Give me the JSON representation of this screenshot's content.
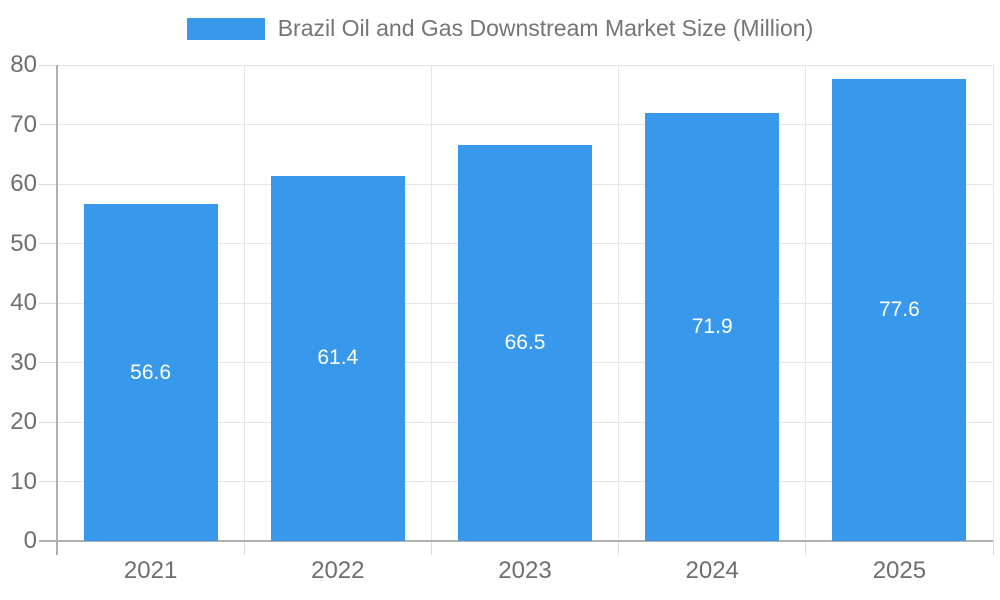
{
  "legend": {
    "label": "Brazil Oil and Gas Downstream Market Size (Million)",
    "swatch_color": "#3899EC"
  },
  "chart_data": {
    "type": "bar",
    "title": "Brazil Oil and Gas Downstream Market Size (Million)",
    "categories": [
      "2021",
      "2022",
      "2023",
      "2024",
      "2025"
    ],
    "values": [
      56.6,
      61.4,
      66.5,
      71.9,
      77.6
    ],
    "xlabel": "",
    "ylabel": "",
    "ylim": [
      0,
      80
    ],
    "ytick_step": 10,
    "yticks": [
      0,
      10,
      20,
      30,
      40,
      50,
      60,
      70,
      80
    ],
    "grid": true,
    "legend_position": "top-center",
    "colors": {
      "bar": "#3899EC",
      "value_label": "#ffffff",
      "axis_text": "#6e6e6e",
      "legend_text": "#757575",
      "gridline": "#e6e6e6",
      "tick": "#d9d9d9",
      "axis_line": "#b0b0b0"
    }
  }
}
